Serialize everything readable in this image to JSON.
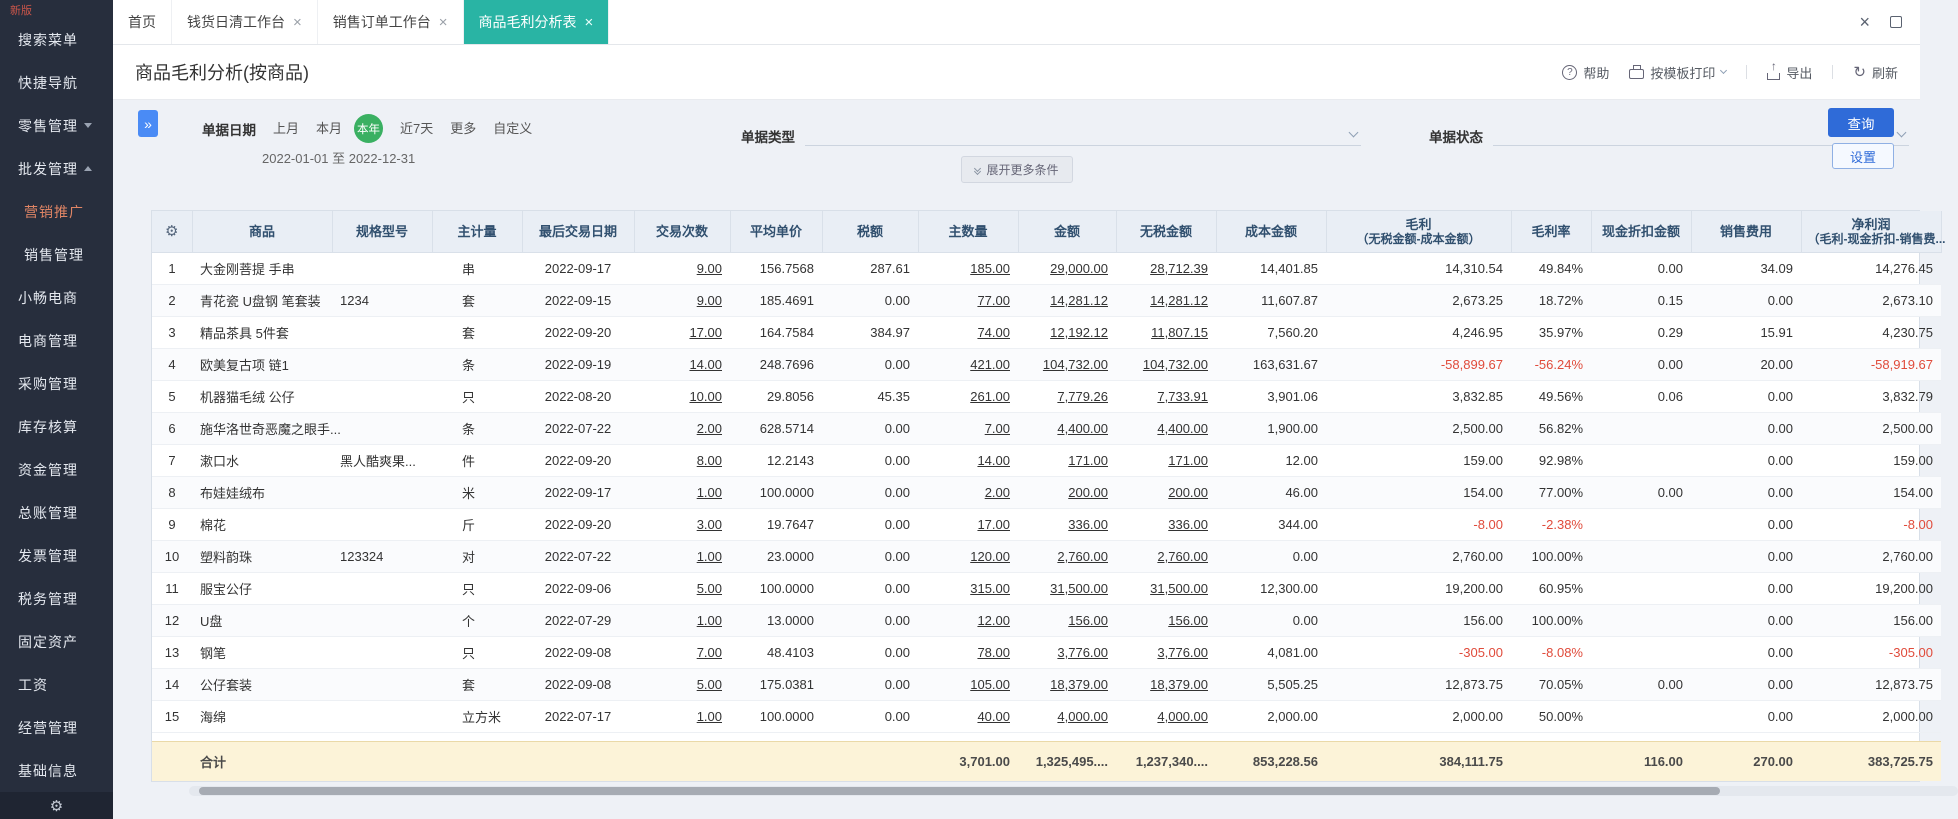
{
  "app": {
    "sidebar_badge": "新版",
    "colors": {
      "sidebar_bg": "#272e3d",
      "active_tab_teal": "#29b4a4",
      "primary_blue": "#2f6bd8",
      "quick_selected_green": "#3ab062",
      "negative_red": "#e04b3b",
      "total_row_bg": "#fcf3d8"
    }
  },
  "sidebar": {
    "items": [
      {
        "label": "搜索菜单"
      },
      {
        "label": "快捷导航"
      },
      {
        "label": "零售管理",
        "arrow": "down"
      },
      {
        "label": "批发管理",
        "arrow": "up"
      },
      {
        "label": "营销推广",
        "sub": true,
        "accent": true
      },
      {
        "label": "销售管理",
        "sub": true
      },
      {
        "label": "小畅电商"
      },
      {
        "label": "电商管理"
      },
      {
        "label": "采购管理"
      },
      {
        "label": "库存核算"
      },
      {
        "label": "资金管理"
      },
      {
        "label": "总账管理"
      },
      {
        "label": "发票管理"
      },
      {
        "label": "税务管理"
      },
      {
        "label": "固定资产"
      },
      {
        "label": "工资"
      },
      {
        "label": "经营管理"
      },
      {
        "label": "基础信息"
      }
    ]
  },
  "tabs": {
    "items": [
      {
        "label": "首页",
        "closable": false,
        "active": false
      },
      {
        "label": "钱货日清工作台",
        "closable": true,
        "active": false
      },
      {
        "label": "销售订单工作台",
        "closable": true,
        "active": false
      },
      {
        "label": "商品毛利分析表",
        "closable": true,
        "active": true
      }
    ]
  },
  "titlebar": {
    "title": "商品毛利分析(按商品)",
    "actions": [
      {
        "label": "帮助",
        "icon": "help"
      },
      {
        "label": "按模板打印",
        "icon": "print",
        "caret": true
      },
      {
        "label": "导出",
        "icon": "export",
        "sep": true
      },
      {
        "label": "刷新",
        "icon": "refresh",
        "sep": true
      }
    ]
  },
  "filters": {
    "date_label": "单据日期",
    "date_options": [
      "上月",
      "本月",
      "本年",
      "近7天",
      "更多",
      "自定义"
    ],
    "date_selected": "本年",
    "date_range": "2022-01-01 至 2022-12-31",
    "doc_type_label": "单据类型",
    "doc_status_label": "单据状态",
    "search_button": "查询",
    "settings_button": "设置",
    "expand_more": "展开更多条件"
  },
  "table": {
    "columns": [
      {
        "icon": "gear",
        "label": ""
      },
      {
        "label": "商品"
      },
      {
        "label": "规格型号"
      },
      {
        "label": "主计量"
      },
      {
        "label": "最后交易日期"
      },
      {
        "label": "交易次数"
      },
      {
        "label": "平均单价"
      },
      {
        "label": "税额"
      },
      {
        "label": "主数量"
      },
      {
        "label": "金额"
      },
      {
        "label": "无税金额"
      },
      {
        "label": "成本金额"
      },
      {
        "label": "毛利",
        "sub": "（无税金额-成本金额）"
      },
      {
        "label": "毛利率"
      },
      {
        "label": "现金折扣金额"
      },
      {
        "label": "销售费用"
      },
      {
        "label": "净利润",
        "sub": "（毛利-现金折扣-销售费..."
      }
    ],
    "rows": [
      [
        "1",
        "大金刚菩提 手串",
        "",
        "串",
        "2022-09-17",
        "9.00",
        "156.7568",
        "287.61",
        "185.00",
        "29,000.00",
        "28,712.39",
        "14,401.85",
        "14,310.54",
        "49.84%",
        "0.00",
        "34.09",
        "14,276.45"
      ],
      [
        "2",
        "青花瓷 U盘钢 笔套装",
        "1234",
        "套",
        "2022-09-15",
        "9.00",
        "185.4691",
        "0.00",
        "77.00",
        "14,281.12",
        "14,281.12",
        "11,607.87",
        "2,673.25",
        "18.72%",
        "0.15",
        "0.00",
        "2,673.10"
      ],
      [
        "3",
        "精品茶具 5件套",
        "",
        "套",
        "2022-09-20",
        "17.00",
        "164.7584",
        "384.97",
        "74.00",
        "12,192.12",
        "11,807.15",
        "7,560.20",
        "4,246.95",
        "35.97%",
        "0.29",
        "15.91",
        "4,230.75"
      ],
      [
        "4",
        "欧美复古项 链1",
        "",
        "条",
        "2022-09-19",
        "14.00",
        "248.7696",
        "0.00",
        "421.00",
        "104,732.00",
        "104,732.00",
        "163,631.67",
        "-58,899.67",
        "-56.24%",
        "0.00",
        "20.00",
        "-58,919.67"
      ],
      [
        "5",
        "机器猫毛绒 公仔",
        "",
        "只",
        "2022-08-20",
        "10.00",
        "29.8056",
        "45.35",
        "261.00",
        "7,779.26",
        "7,733.91",
        "3,901.06",
        "3,832.85",
        "49.56%",
        "0.06",
        "0.00",
        "3,832.79"
      ],
      [
        "6",
        "施华洛世奇恶魔之眼手...",
        "",
        "条",
        "2022-07-22",
        "2.00",
        "628.5714",
        "0.00",
        "7.00",
        "4,400.00",
        "4,400.00",
        "1,900.00",
        "2,500.00",
        "56.82%",
        "",
        "0.00",
        "2,500.00"
      ],
      [
        "7",
        "漱口水",
        "黑人酷爽果...",
        "件",
        "2022-09-20",
        "8.00",
        "12.2143",
        "0.00",
        "14.00",
        "171.00",
        "171.00",
        "12.00",
        "159.00",
        "92.98%",
        "",
        "0.00",
        "159.00"
      ],
      [
        "8",
        "布娃娃绒布",
        "",
        "米",
        "2022-09-17",
        "1.00",
        "100.0000",
        "0.00",
        "2.00",
        "200.00",
        "200.00",
        "46.00",
        "154.00",
        "77.00%",
        "0.00",
        "0.00",
        "154.00"
      ],
      [
        "9",
        "棉花",
        "",
        "斤",
        "2022-09-20",
        "3.00",
        "19.7647",
        "0.00",
        "17.00",
        "336.00",
        "336.00",
        "344.00",
        "-8.00",
        "-2.38%",
        "",
        "0.00",
        "-8.00"
      ],
      [
        "10",
        "塑料韵珠",
        "123324",
        "对",
        "2022-07-22",
        "1.00",
        "23.0000",
        "0.00",
        "120.00",
        "2,760.00",
        "2,760.00",
        "0.00",
        "2,760.00",
        "100.00%",
        "",
        "0.00",
        "2,760.00"
      ],
      [
        "11",
        "服宝公仔",
        "",
        "只",
        "2022-09-06",
        "5.00",
        "100.0000",
        "0.00",
        "315.00",
        "31,500.00",
        "31,500.00",
        "12,300.00",
        "19,200.00",
        "60.95%",
        "",
        "0.00",
        "19,200.00"
      ],
      [
        "12",
        "U盘",
        "",
        "个",
        "2022-07-29",
        "1.00",
        "13.0000",
        "0.00",
        "12.00",
        "156.00",
        "156.00",
        "0.00",
        "156.00",
        "100.00%",
        "",
        "0.00",
        "156.00"
      ],
      [
        "13",
        "钢笔",
        "",
        "只",
        "2022-09-08",
        "7.00",
        "48.4103",
        "0.00",
        "78.00",
        "3,776.00",
        "3,776.00",
        "4,081.00",
        "-305.00",
        "-8.08%",
        "",
        "0.00",
        "-305.00"
      ],
      [
        "14",
        "公仔套装",
        "",
        "套",
        "2022-09-08",
        "5.00",
        "175.0381",
        "0.00",
        "105.00",
        "18,379.00",
        "18,379.00",
        "5,505.25",
        "12,873.75",
        "70.05%",
        "0.00",
        "0.00",
        "12,873.75"
      ],
      [
        "15",
        "海绵",
        "",
        "立方米",
        "2022-07-17",
        "1.00",
        "100.0000",
        "0.00",
        "40.00",
        "4,000.00",
        "4,000.00",
        "2,000.00",
        "2,000.00",
        "50.00%",
        "",
        "0.00",
        "2,000.00"
      ]
    ],
    "total": [
      "",
      "合计",
      "",
      "",
      "",
      "",
      "",
      "",
      "3,701.00",
      "1,325,495....",
      "1,237,340....",
      "853,228.56",
      "384,111.75",
      "",
      "116.00",
      "270.00",
      "383,725.75"
    ]
  }
}
